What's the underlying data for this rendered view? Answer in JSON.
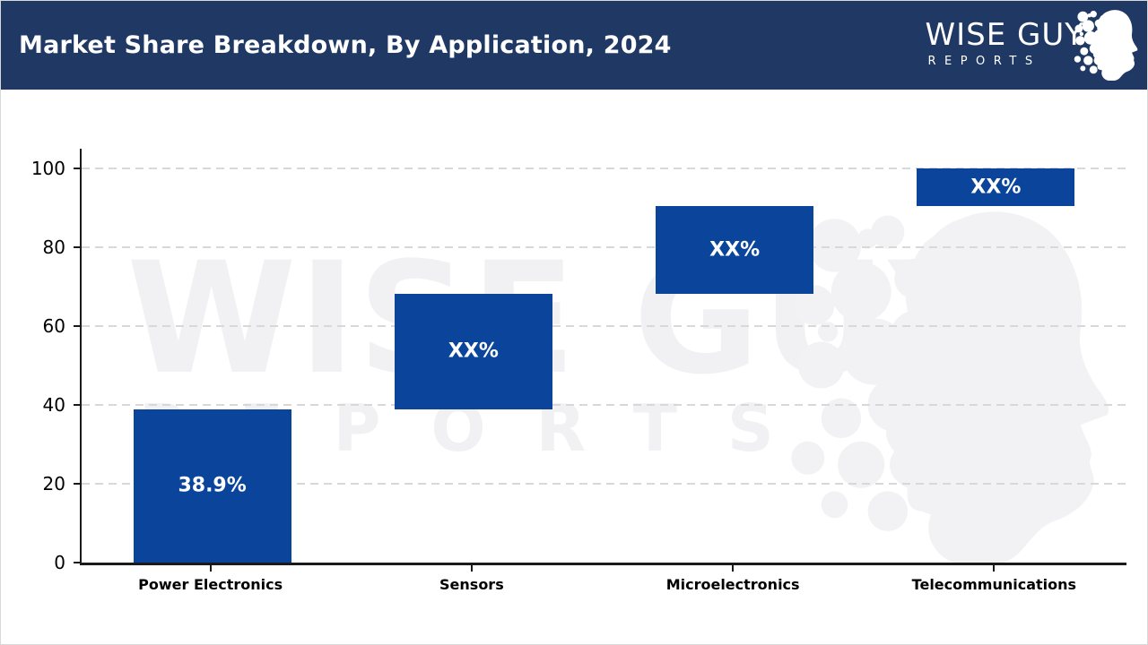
{
  "header": {
    "title": "Market Share Breakdown, By Application, 2024",
    "logo_line1": "WISE GUY",
    "logo_line2": "REPORTS"
  },
  "watermark": {
    "line1": "WISE GUY",
    "line2": "REPORTS"
  },
  "chart_data": {
    "type": "bar",
    "variant": "waterfall-breakdown",
    "title": "Market Share Breakdown, By Application, 2024",
    "categories": [
      "Power Electronics",
      "Sensors",
      "Microelectronics",
      "Telecommunications"
    ],
    "segments": [
      {
        "category": "Power Electronics",
        "start": 0,
        "end": 38.9,
        "label": "38.9%"
      },
      {
        "category": "Sensors",
        "start": 38.9,
        "end": 68.2,
        "label": "XX%"
      },
      {
        "category": "Microelectronics",
        "start": 68.2,
        "end": 90.5,
        "label": "XX%"
      },
      {
        "category": "Telecommunications",
        "start": 90.5,
        "end": 100,
        "label": "XX%"
      }
    ],
    "xlabel": "",
    "ylabel": "",
    "ylim": [
      0,
      100
    ],
    "yticks": [
      "0",
      "20",
      "40",
      "60",
      "80",
      "100"
    ],
    "grid": "horizontal-dashed",
    "legend_position": "none",
    "bar_color": "#0A459B",
    "bar_label_color": "#FFFFFF"
  },
  "colors": {
    "header_bg": "#1F3864",
    "bar": "#0A459B",
    "watermark": "#F1F1F4",
    "gridline": "#D8D8D8",
    "axis": "#1A1A1A",
    "tick_text": "#000000",
    "title_text": "#FFFFFF"
  }
}
